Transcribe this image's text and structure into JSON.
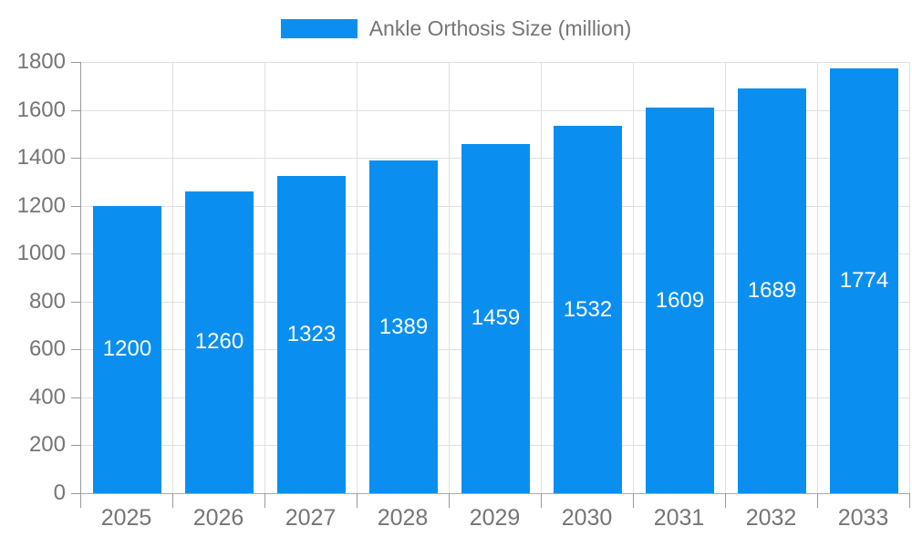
{
  "page": {
    "background": "#ffffff"
  },
  "legend": {
    "label": "Ankle Orthosis Size (million)",
    "position": "top-center"
  },
  "chart_data": {
    "type": "bar",
    "title": "Ankle Orthosis Size (million)",
    "categories": [
      "2025",
      "2026",
      "2027",
      "2028",
      "2029",
      "2030",
      "2031",
      "2032",
      "2033"
    ],
    "series": [
      {
        "name": "Ankle Orthosis Size (million)",
        "values": [
          1200,
          1260,
          1323,
          1389,
          1459,
          1532,
          1609,
          1689,
          1774
        ]
      }
    ],
    "value_labels_shown": true,
    "xlabel": "",
    "ylabel": "",
    "ylim": [
      0,
      1800
    ],
    "ytick_step": 200,
    "yticks": [
      0,
      200,
      400,
      600,
      800,
      1000,
      1200,
      1400,
      1600,
      1800
    ],
    "grid": true,
    "legend_position": "top-center",
    "colors": {
      "bar": "#0a8ff0",
      "value_label": "#ffffff",
      "axis_text": "#757575",
      "grid_line": "#e0e0e0",
      "axis_line": "#999999",
      "baseline": "#aaaaaa",
      "tick": "#999999"
    }
  }
}
